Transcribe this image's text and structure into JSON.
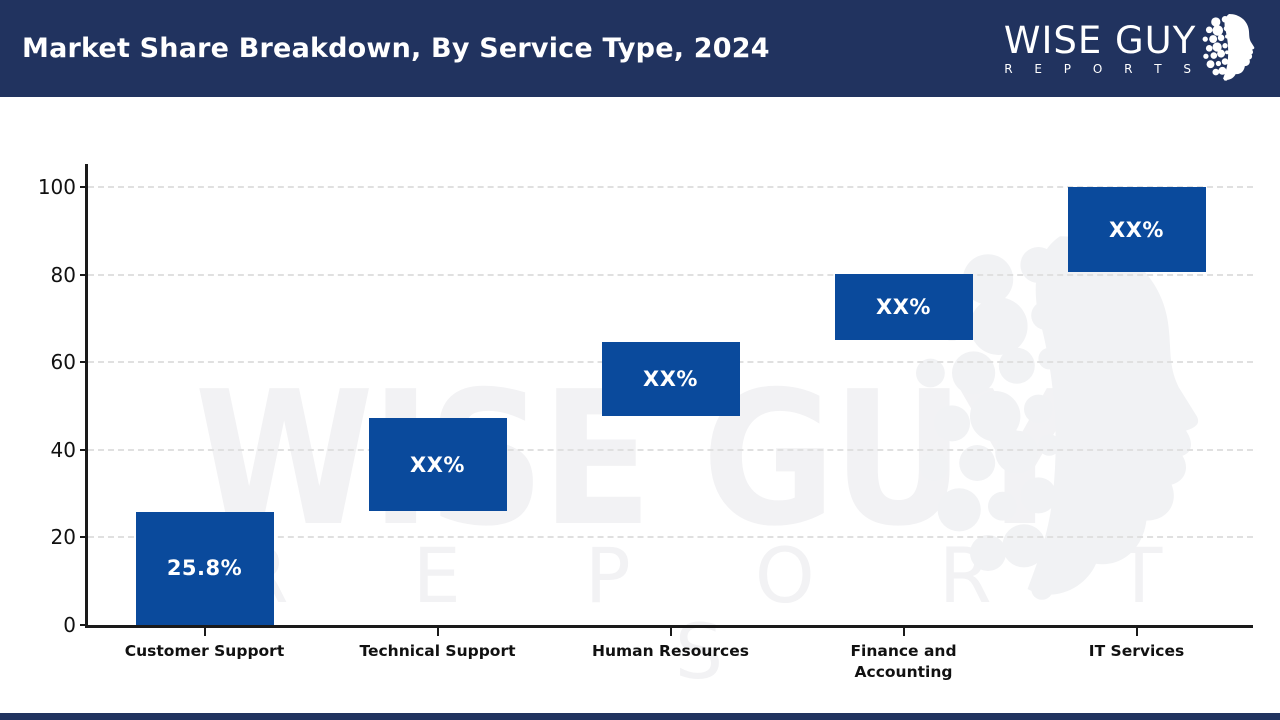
{
  "header": {
    "title": "Market Share Breakdown, By Service Type, 2024",
    "logo": {
      "line1": "WISE GUY",
      "line2": "REPORTS"
    }
  },
  "watermark": {
    "line1": "WISE GUY",
    "line2": "REPORTS"
  },
  "colors": {
    "header_bg": "#21335f",
    "footer_bg": "#21335f",
    "bar": "#0a4a9c",
    "bar_label": "#ffffff",
    "watermark": "#f2f2f4",
    "grid": "#e0e0e0",
    "axis": "#1a1a1a"
  },
  "chart_data": {
    "type": "bar",
    "subtype": "waterfall",
    "title": "Market Share Breakdown, By Service Type, 2024",
    "categories": [
      "Customer Support",
      "Technical Support",
      "Human Resources",
      "Finance and Accounting",
      "IT Services"
    ],
    "segments": [
      {
        "category": "Customer Support",
        "start": 0,
        "end": 25.8,
        "label": "25.8%"
      },
      {
        "category": "Technical Support",
        "start": 26,
        "end": 47.2,
        "label": "XX%"
      },
      {
        "category": "Human Resources",
        "start": 47.7,
        "end": 64.6,
        "label": "XX%"
      },
      {
        "category": "Finance and Accounting",
        "start": 65.1,
        "end": 80.2,
        "label": "XX%"
      },
      {
        "category": "IT Services",
        "start": 80.5,
        "end": 100,
        "label": "XX%"
      }
    ],
    "xlabel": "",
    "ylabel": "",
    "yticks": [
      0,
      20,
      40,
      60,
      80,
      100
    ],
    "ylim": [
      0,
      105
    ],
    "grid": "horizontal-dashed",
    "legend": "none"
  }
}
